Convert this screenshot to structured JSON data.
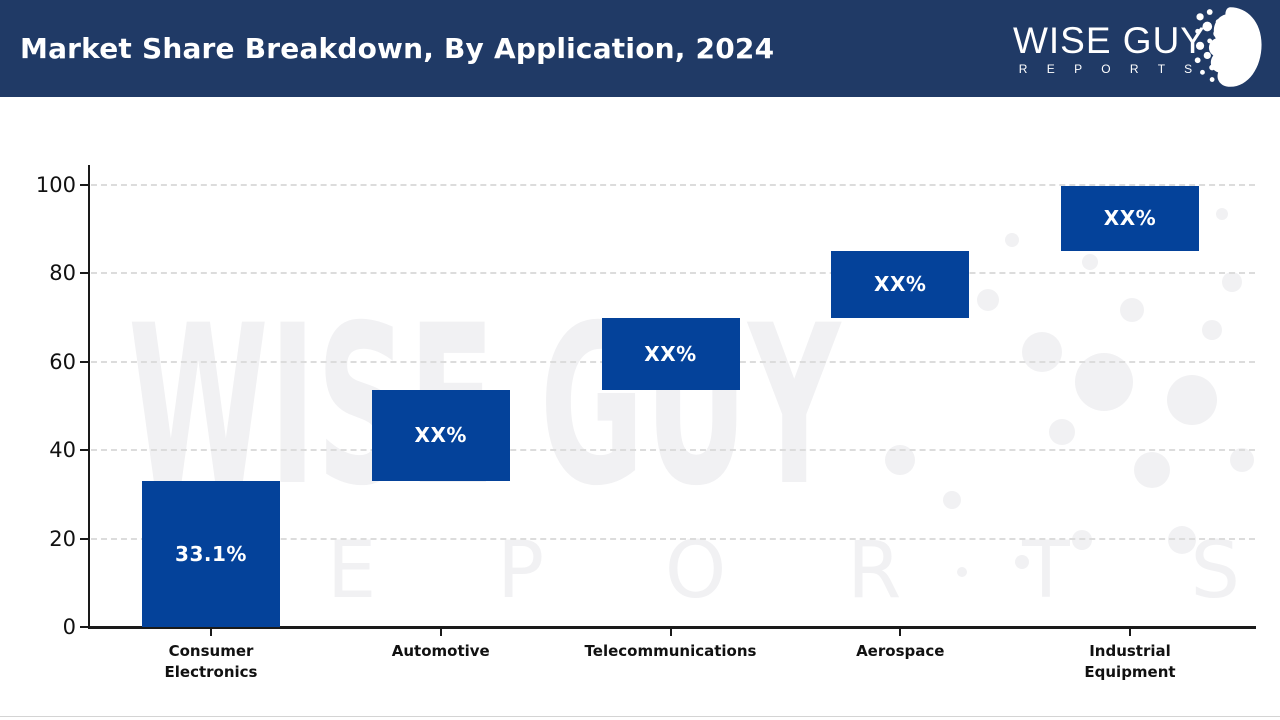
{
  "header": {
    "title": "Market Share Breakdown, By Application, 2024",
    "logo": {
      "line1": "WISE GUY",
      "line2": "R E P O R T S"
    }
  },
  "watermark": {
    "line1": "WISE GUY",
    "line2": "R E P O R T S"
  },
  "colors": {
    "header_bg": "#203a66",
    "bar": "#04429a",
    "bar_label": "#ffffff",
    "grid": "#dcdcdc",
    "axis": "#1a1a1a",
    "watermark": "#f1f1f3",
    "title_text": "#ffffff"
  },
  "chart_data": {
    "type": "bar",
    "variant": "floating-waterfall",
    "title": "Market Share Breakdown, By Application, 2024",
    "categories": [
      "Consumer Electronics",
      "Automotive",
      "Telecommunications",
      "Aerospace",
      "Industrial Equipment"
    ],
    "bars": [
      {
        "category_lines": [
          "Consumer",
          "Electronics"
        ],
        "start": 0,
        "end": 33.1,
        "label": "33.1%"
      },
      {
        "category_lines": [
          "Automotive"
        ],
        "start": 33.1,
        "end": 53.6,
        "label": "XX%"
      },
      {
        "category_lines": [
          "Telecommunications"
        ],
        "start": 53.6,
        "end": 69.9,
        "label": "XX%"
      },
      {
        "category_lines": [
          "Aerospace"
        ],
        "start": 69.9,
        "end": 85.0,
        "label": "XX%"
      },
      {
        "category_lines": [
          "Industrial",
          "Equipment"
        ],
        "start": 85.0,
        "end": 99.7,
        "label": "XX%"
      }
    ],
    "xlabel": "",
    "ylabel": "",
    "ylim": [
      0,
      100
    ],
    "yticks": [
      0,
      20,
      40,
      60,
      80,
      100
    ],
    "grid": "horizontal-dashed",
    "legend": "none"
  }
}
